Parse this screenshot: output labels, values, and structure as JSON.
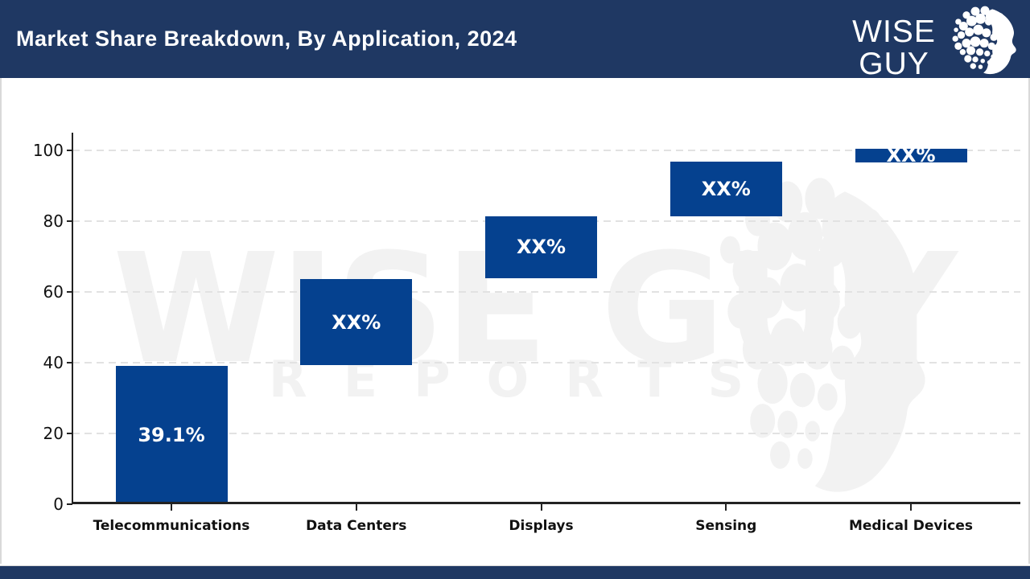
{
  "header": {
    "title": "Market Share Breakdown, By Application, 2024"
  },
  "logo": {
    "line1": "WISE GUY",
    "line2": "REPORTS"
  },
  "watermark": {
    "line1": "WISE GUY",
    "line2": "REPORTS"
  },
  "theme": {
    "header_bg": "#1f3863",
    "bar_color": "#05418f",
    "bar_label_color": "#ffffff",
    "axis_color": "#222222",
    "grid_color": "#e2e2e2",
    "watermark_color": "#f2f2f2"
  },
  "chart_data": {
    "type": "bar",
    "subtype": "waterfall",
    "title": "Market Share Breakdown, By Application, 2024",
    "categories": [
      "Telecommunications",
      "Data Centers",
      "Displays",
      "Sensing",
      "Medical Devices"
    ],
    "segments": [
      {
        "category": "Telecommunications",
        "start": 0,
        "end": 39.1,
        "label": "39.1%"
      },
      {
        "category": "Data Centers",
        "start": 39.3,
        "end": 63.6,
        "label": "XX%"
      },
      {
        "category": "Displays",
        "start": 63.9,
        "end": 81.4,
        "label": "XX%"
      },
      {
        "category": "Sensing",
        "start": 81.4,
        "end": 96.8,
        "label": "XX%"
      },
      {
        "category": "Medical Devices",
        "start": 96.6,
        "end": 100.5,
        "label": "XX%"
      }
    ],
    "xlabel": "",
    "ylabel": "",
    "ylim": [
      0,
      100
    ],
    "yticks": [
      0,
      20,
      40,
      60,
      80,
      100
    ],
    "grid": "dashed-horizontal",
    "legend": "none"
  }
}
